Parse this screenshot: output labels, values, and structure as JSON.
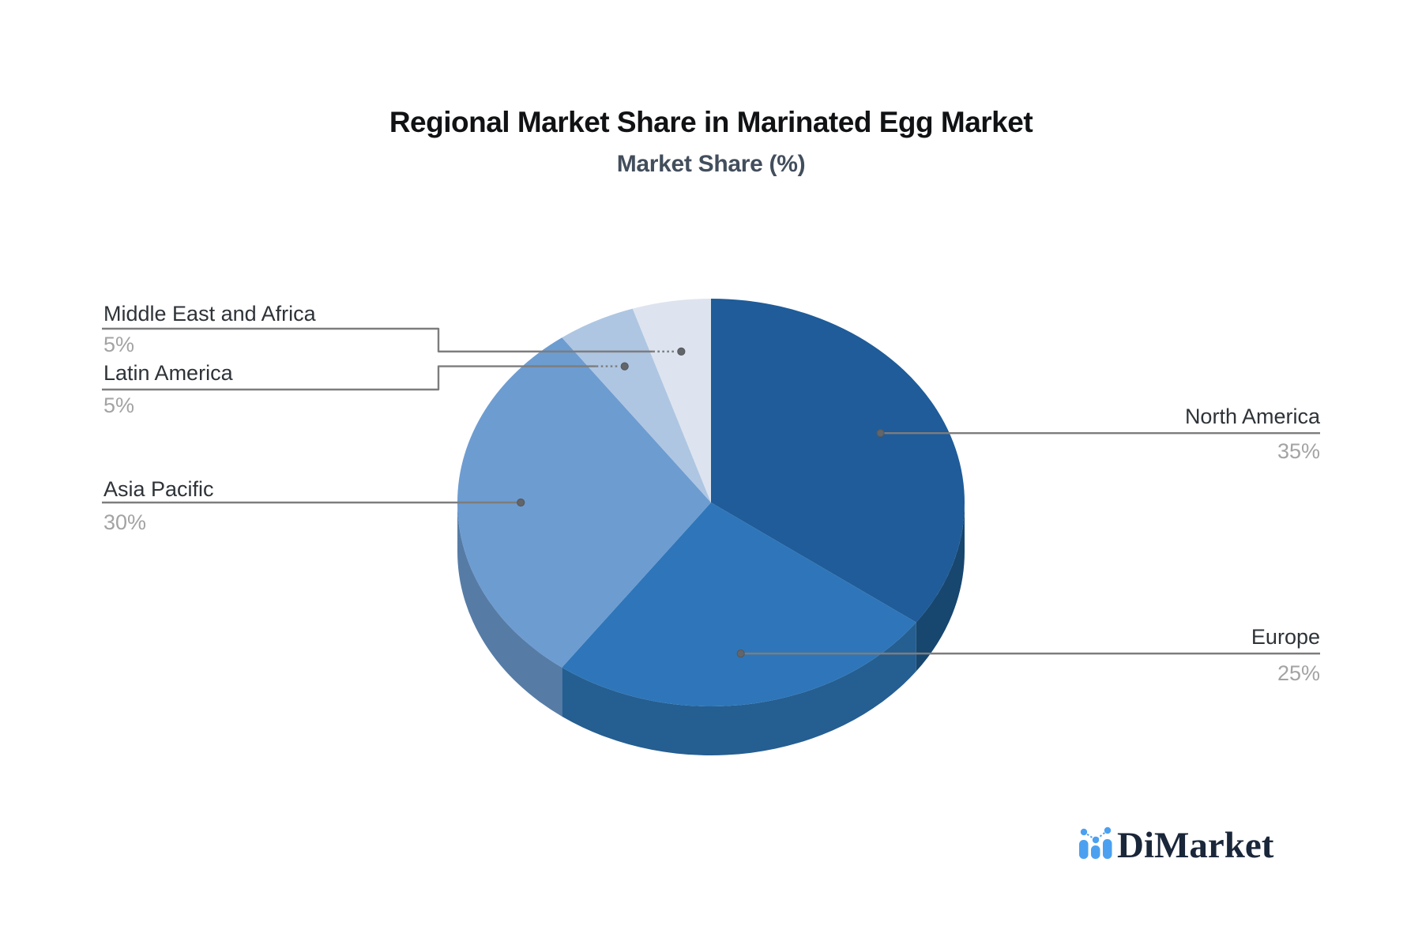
{
  "header": {
    "title": "Regional Market Share in Marinated Egg Market",
    "subtitle": "Market Share (%)"
  },
  "chart_data": {
    "type": "pie",
    "title": "Regional Market Share in Marinated Egg Market",
    "subtitle": "Market Share (%)",
    "unit": "%",
    "effect_3d": true,
    "start_angle": "top",
    "direction": "clockwise",
    "slices": [
      {
        "label": "North America",
        "value": 35,
        "display": "35%",
        "color": "#1F5C99",
        "wall_color": "#17466F",
        "label_side": "right"
      },
      {
        "label": "Europe",
        "value": 25,
        "display": "25%",
        "color": "#2E76B9",
        "wall_color": "#255E91",
        "label_side": "right"
      },
      {
        "label": "Asia Pacific",
        "value": 30,
        "display": "30%",
        "color": "#6D9CD1",
        "wall_color": "#567CA6",
        "label_side": "left"
      },
      {
        "label": "Latin America",
        "value": 5,
        "display": "5%",
        "color": "#AEC6E2",
        "wall_color": "#8BA0B8",
        "label_side": "left"
      },
      {
        "label": "Middle East and Africa",
        "value": 5,
        "display": "5%",
        "color": "#DDE4EF",
        "wall_color": "#B2BDCD",
        "label_side": "left"
      }
    ],
    "legend": "none",
    "label_text_color": "#2E3338",
    "pct_text_color": "#A3A3A3",
    "leader_line_color": "#7D7D7D",
    "leader_dot_color": "#626569"
  },
  "branding": {
    "logo_text": "DiMarket",
    "logo_text_color": "#1A2639",
    "logo_icon": "bar-chart-with-trend-dots-icon",
    "logo_icon_color": "#4BA1F0"
  }
}
